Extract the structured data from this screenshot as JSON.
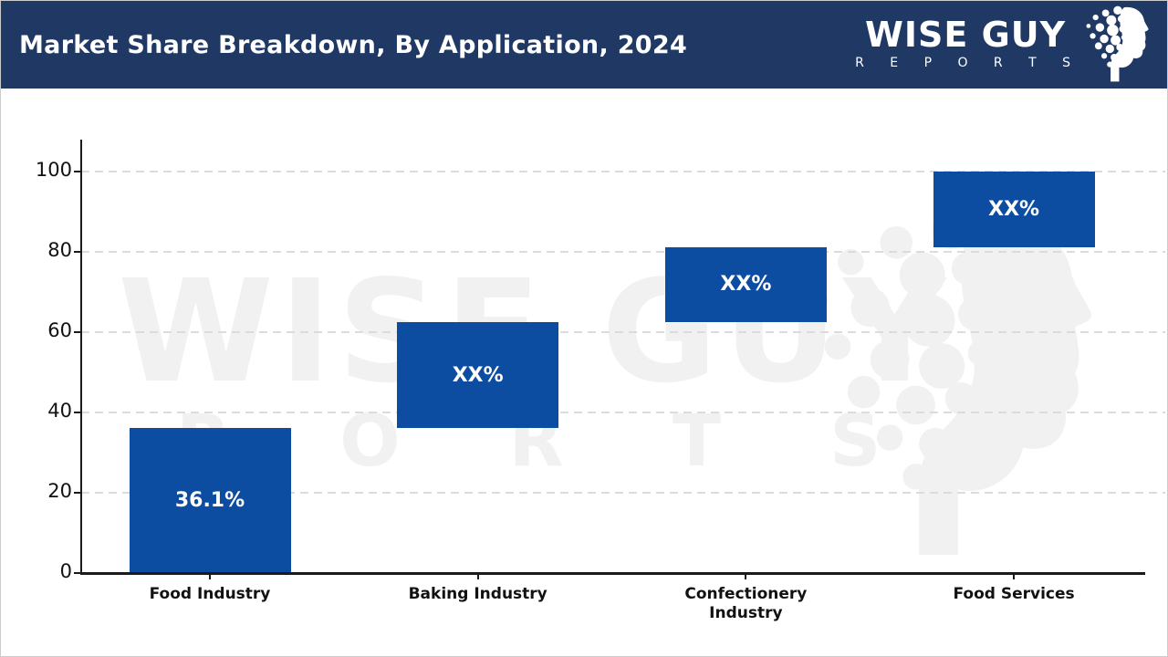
{
  "header": {
    "title": "Market Share Breakdown, By Application, 2024",
    "bg_color": "#1f3864",
    "logo": {
      "line1": "WISE GUY",
      "line2": "R E P O R T S"
    }
  },
  "watermark": {
    "line1": "WISE GUY",
    "line2": "R O R T S"
  },
  "chart_data": {
    "type": "bar",
    "subtype": "stacked-waterfall",
    "title": "Market Share Breakdown, By Application, 2024",
    "categories": [
      "Food Industry",
      "Baking Industry",
      "Confectionery Industry",
      "Food Services"
    ],
    "segments": [
      {
        "category": "Food Industry",
        "start": 0,
        "end": 36.1,
        "label": "36.1%"
      },
      {
        "category": "Baking Industry",
        "start": 36.1,
        "end": 62.5,
        "label": "XX%"
      },
      {
        "category": "Confectionery Industry",
        "start": 62.5,
        "end": 81.2,
        "label": "XX%"
      },
      {
        "category": "Food Services",
        "start": 81.2,
        "end": 100,
        "label": "XX%"
      }
    ],
    "y_ticks": [
      0,
      20,
      40,
      60,
      80,
      100
    ],
    "ylim": [
      0,
      105
    ],
    "xlabel": "",
    "ylabel": "",
    "grid": true,
    "legend": false,
    "bar_color": "#0d4da1",
    "bar_label_color": "#ffffff",
    "gridline_color": "#dcdcdc",
    "axis_color": "#1a1a1a"
  }
}
